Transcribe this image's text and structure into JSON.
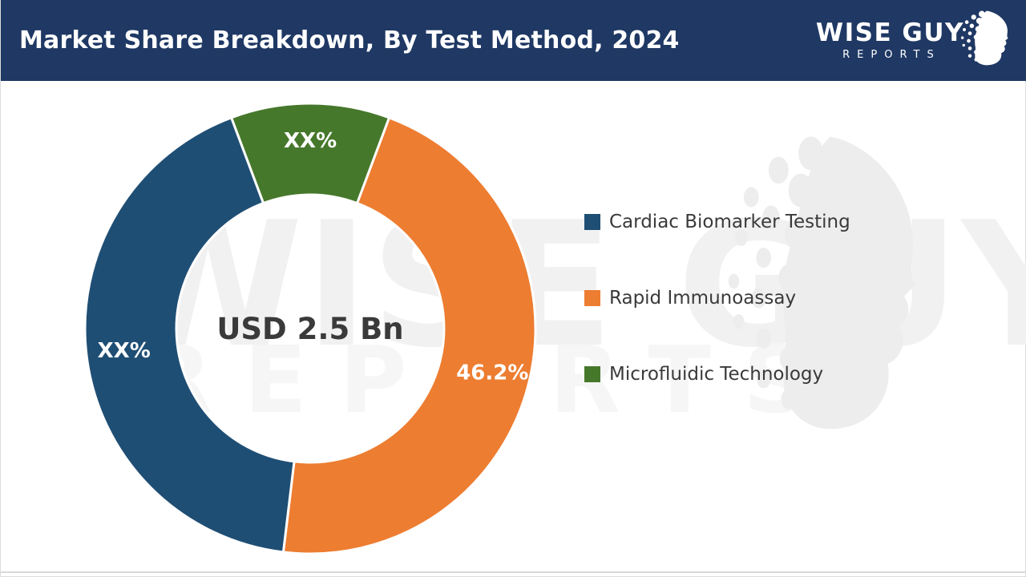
{
  "header": {
    "title": "Market Share Breakdown, By Test Method, 2024",
    "logo": {
      "wordmark": "WISE GUY",
      "subtext": "REPORTS"
    }
  },
  "watermark": {
    "wordmark": "WISE GUY",
    "subtext": "REPORTS"
  },
  "chart_data": {
    "type": "donut",
    "title": "Market Share Breakdown, By Test Method, 2024",
    "center_label": "USD 2.5 Bn",
    "legend_position": "right",
    "segments": [
      {
        "label": "Cardiac Biomarker Testing",
        "display_value": "XX%",
        "value_pct_est": 42.4,
        "color": "#1f4e74"
      },
      {
        "label": "Rapid Immunoassay",
        "display_value": "46.2%",
        "value_pct_est": 46.2,
        "color": "#ed7d31"
      },
      {
        "label": "Microfluidic Technology",
        "display_value": "XX%",
        "value_pct_est": 11.4,
        "color": "#46782b"
      }
    ],
    "draw_order": [
      2,
      1,
      0
    ],
    "start_angle_deg": -20.5,
    "colors": {
      "header_bg": "#1f3864",
      "segment_label_text": "#ffffff",
      "center_text": "#3a3a3a",
      "legend_text": "#3a3a3a",
      "watermark": "#f1f1f1"
    }
  }
}
